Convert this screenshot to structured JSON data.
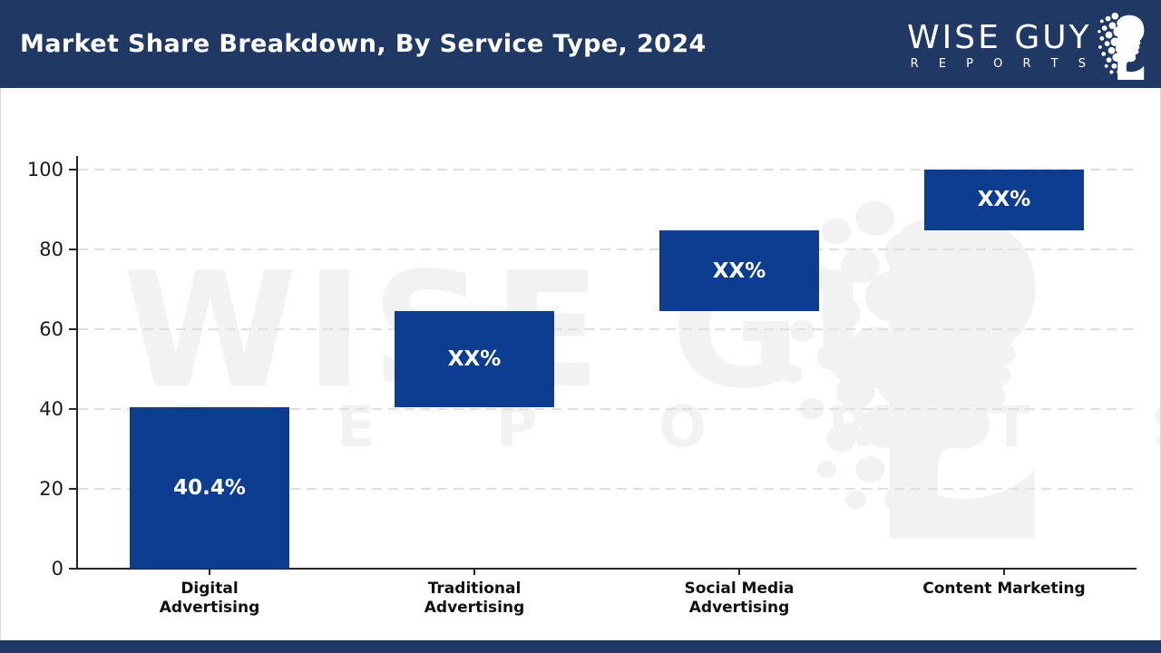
{
  "header": {
    "title": "Market Share Breakdown, By Service Type, 2024",
    "logo": {
      "line1": "WISE GUY",
      "line2": "R E P O R T S",
      "face_icon": "dotted-head-profile"
    }
  },
  "watermark": {
    "line1": "WISE GU",
    "line2": "R E P O R T S",
    "face_icon": "dotted-head-profile"
  },
  "colors": {
    "header_navy": "#1f3864",
    "bar_blue": "#0d3d91",
    "watermark_gray": "#f2f2f2",
    "gridline": "#e0e0e0",
    "axis": "#262626",
    "tick_text": "#1a1a1a",
    "bar_label_text": "#ffffff",
    "title_text": "#ffffff"
  },
  "chart_data": {
    "type": "bar",
    "subtype": "waterfall",
    "title": "Market Share Breakdown, By Service Type, 2024",
    "categories": [
      "Digital\nAdvertising",
      "Traditional\nAdvertising",
      "Social Media\nAdvertising",
      "Content Marketing"
    ],
    "segments": [
      {
        "category": "Digital Advertising",
        "start": 0,
        "end": 40.4,
        "label": "40.4%"
      },
      {
        "category": "Traditional Advertising",
        "start": 40.4,
        "end": 64.5,
        "label": "XX%"
      },
      {
        "category": "Social Media Advertising",
        "start": 64.5,
        "end": 84.8,
        "label": "XX%"
      },
      {
        "category": "Content Marketing",
        "start": 84.8,
        "end": 100,
        "label": "XX%"
      }
    ],
    "ylim": [
      0,
      100
    ],
    "yticks": [
      0,
      20,
      40,
      60,
      80,
      100
    ],
    "xlabel": "",
    "ylabel": "",
    "grid": "dashed-horizontal-light",
    "legend": "none"
  }
}
